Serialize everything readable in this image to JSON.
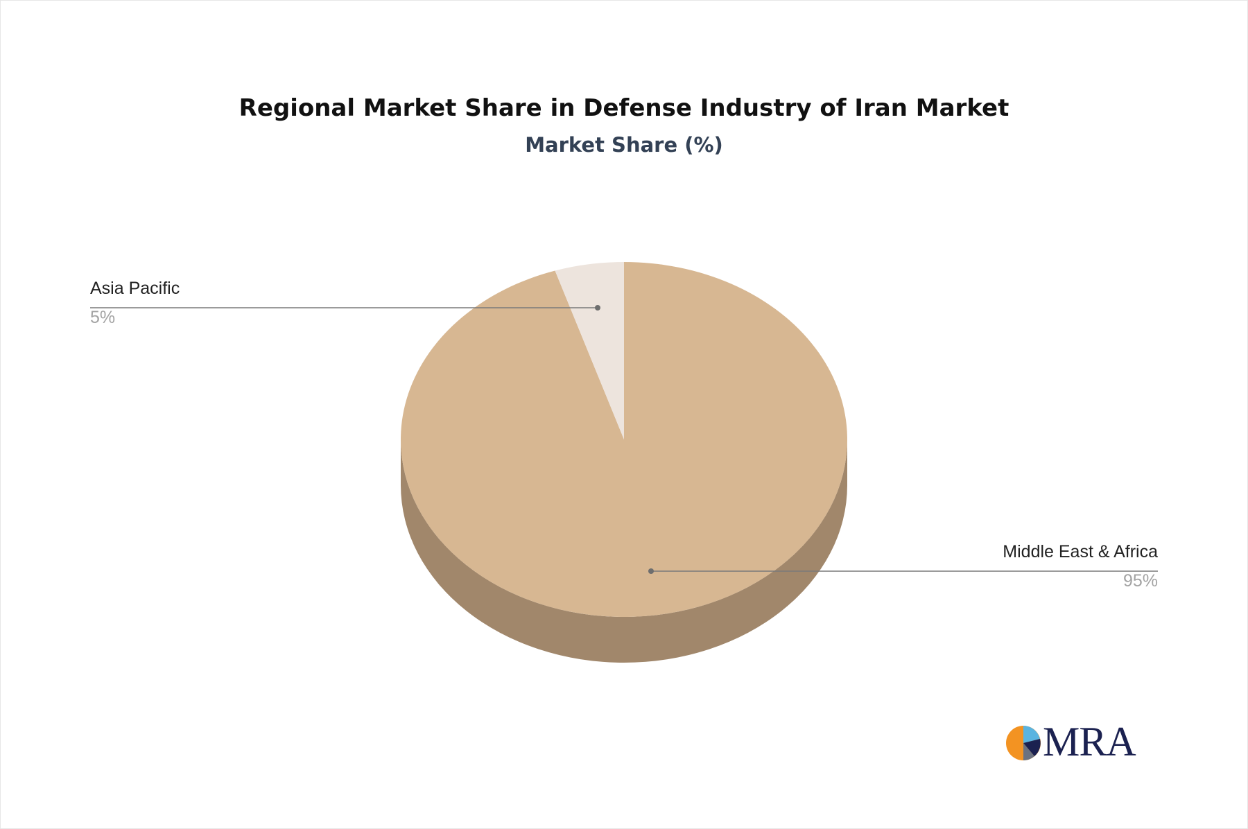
{
  "chart_data": {
    "type": "pie",
    "title": "Regional Market Share in Defense Industry of Iran Market",
    "subtitle": "Market Share (%)",
    "slices": [
      {
        "name": "Middle East & Africa",
        "value": 95,
        "label": "95%",
        "color": "#d7b792",
        "side_color": "#a1876b"
      },
      {
        "name": "Asia Pacific",
        "value": 5,
        "label": "5%",
        "color": "#ede4dd",
        "side_color": "#b5aca5"
      }
    ],
    "legend": "none"
  },
  "logo": {
    "text": "MRA",
    "colors": [
      "#f39322",
      "#5ab4e0",
      "#1b2150",
      "#6b7280"
    ]
  }
}
